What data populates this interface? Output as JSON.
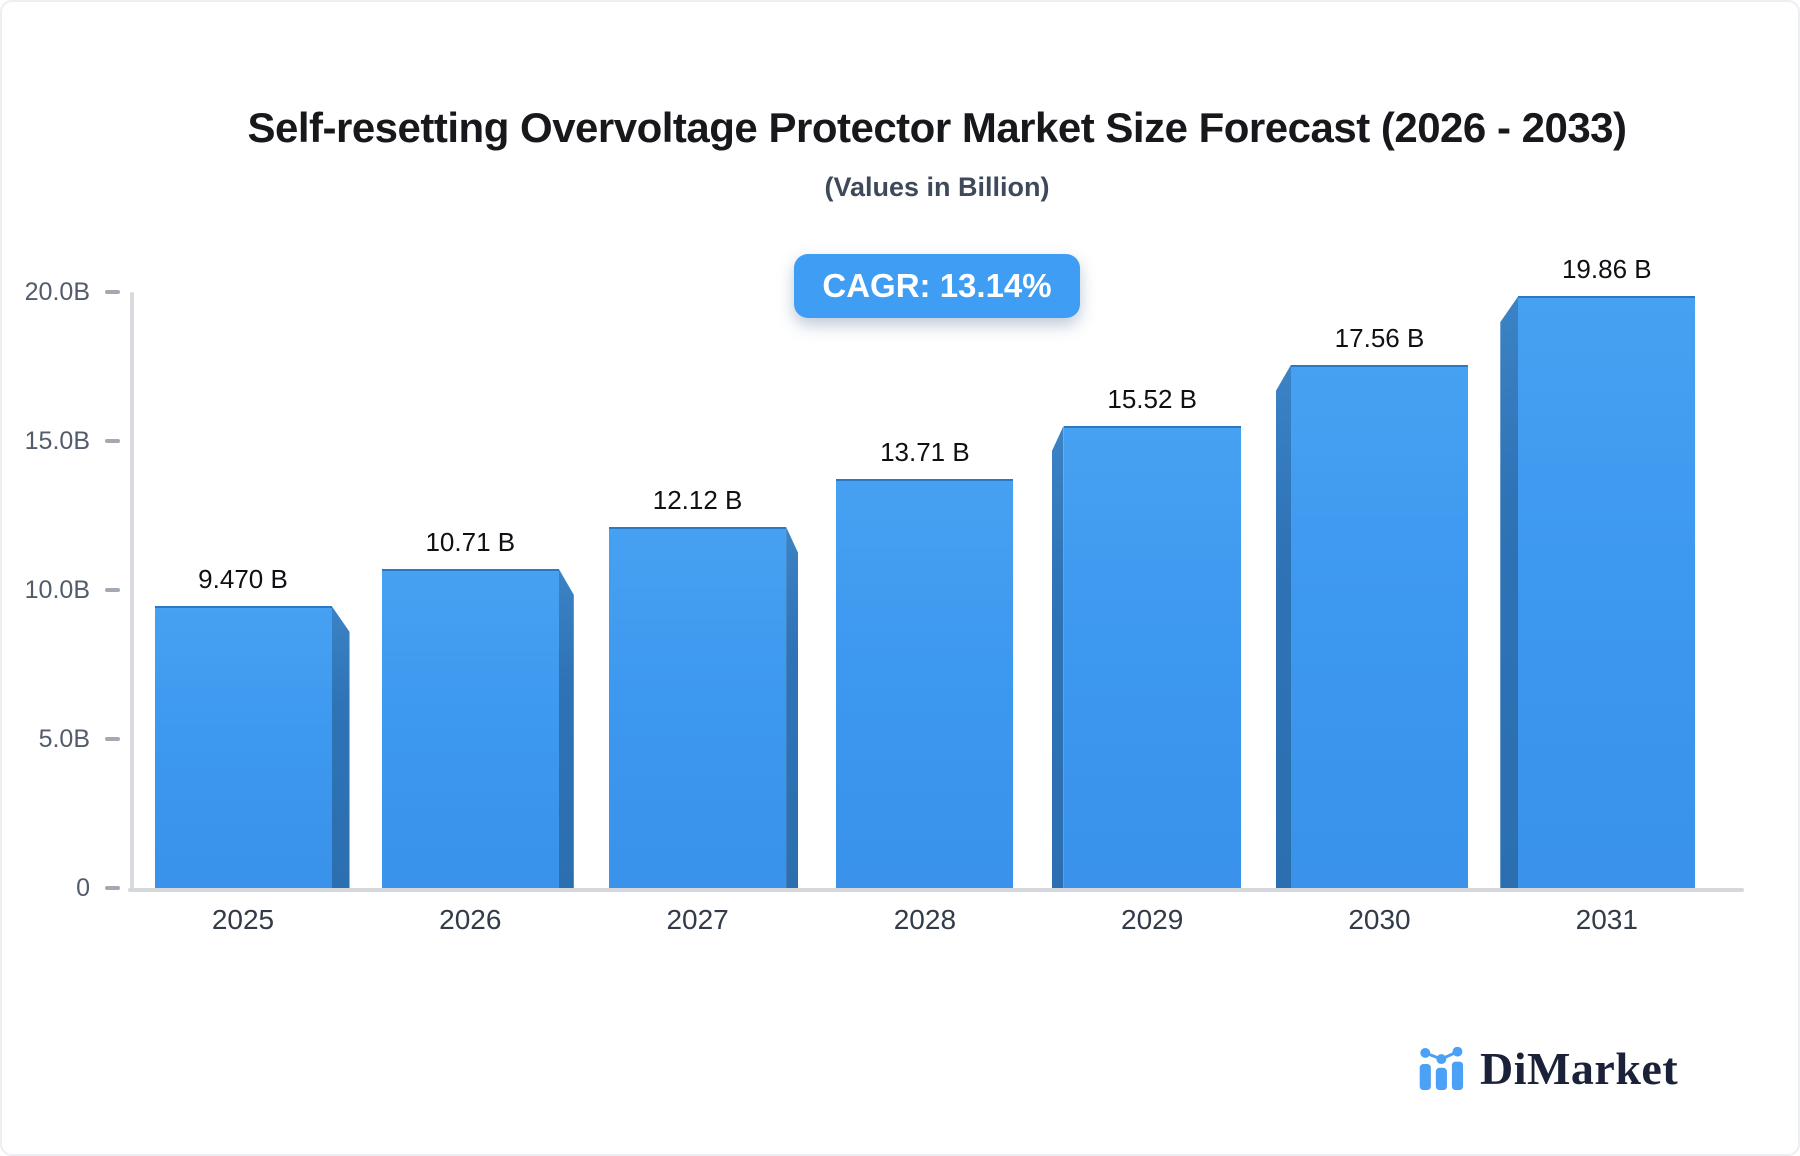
{
  "chart_data": {
    "type": "bar",
    "title": "Self-resetting Overvoltage Protector Market Size Forecast (2026 - 2033)",
    "subtitle": "(Values in Billion)",
    "badge_label": "CAGR: 13.14%",
    "categories": [
      "2025",
      "2026",
      "2027",
      "2028",
      "2029",
      "2030",
      "2031"
    ],
    "values": [
      9.47,
      10.71,
      12.12,
      13.71,
      15.52,
      17.56,
      19.86
    ],
    "value_labels": [
      "9.470 B",
      "10.71 B",
      "12.12 B",
      "13.71 B",
      "15.52 B",
      "17.56 B",
      "19.86 B"
    ],
    "ylim": [
      0,
      20
    ],
    "yticks": [
      {
        "value": 0,
        "label": "0"
      },
      {
        "value": 5,
        "label": "5.0B"
      },
      {
        "value": 10,
        "label": "10.0B"
      },
      {
        "value": 15,
        "label": "15.0B"
      },
      {
        "value": 20,
        "label": "20.0B"
      }
    ],
    "grid": false,
    "legend": false,
    "bar_style": "3d-extruded-center-perspective"
  },
  "colors": {
    "bar_face": "#3D98EF",
    "bar_side": "#2D73B6",
    "badge_bg": "#3F9DF4",
    "badge_text": "#FFFFFF",
    "axis_line": "#D6DADE",
    "ytick_text": "#525C6A",
    "xtick_text": "#323B49",
    "value_text": "#0E1013",
    "title_text": "#17181B",
    "subtitle_text": "#3E4A5A",
    "logo_navy": "#1A2138",
    "logo_blue": "#4BA1F6"
  },
  "branding": {
    "logo_text": "DiMarket"
  }
}
